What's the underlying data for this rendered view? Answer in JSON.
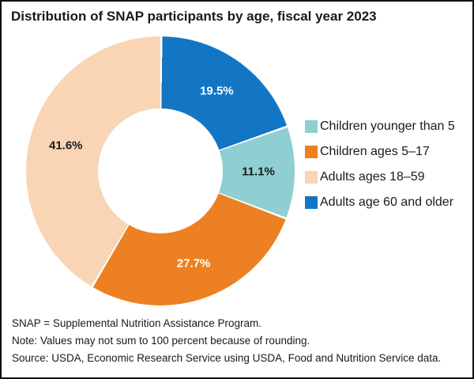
{
  "chart_data": {
    "type": "pie",
    "subtype": "donut",
    "title": "Distribution of SNAP participants by age, fiscal year 2023",
    "start_angle_deg": 0,
    "direction": "clockwise",
    "legend_position": "right",
    "slices": [
      {
        "label": "Adults age 60 and older",
        "value": 19.5,
        "display_value": "19.5%",
        "color": "#1276c5",
        "label_color": "#ffffff"
      },
      {
        "label": "Children younger than 5",
        "value": 11.1,
        "display_value": "11.1%",
        "color": "#8fcfd1",
        "label_color": "#1a1a1a"
      },
      {
        "label": "Children ages 5–17",
        "value": 27.7,
        "display_value": "27.7%",
        "color": "#ed8022",
        "label_color": "#ffffff"
      },
      {
        "label": "Adults ages 18–59",
        "value": 41.6,
        "display_value": "41.6%",
        "color": "#f9d5b5",
        "label_color": "#1a1a1a"
      }
    ],
    "legend_order": [
      1,
      2,
      3,
      0
    ]
  },
  "notes": [
    "SNAP = Supplemental Nutrition Assistance Program.",
    "Note: Values may not sum to 100 percent because of rounding.",
    "Source: USDA, Economic Research Service using USDA, Food and Nutrition Service data."
  ]
}
